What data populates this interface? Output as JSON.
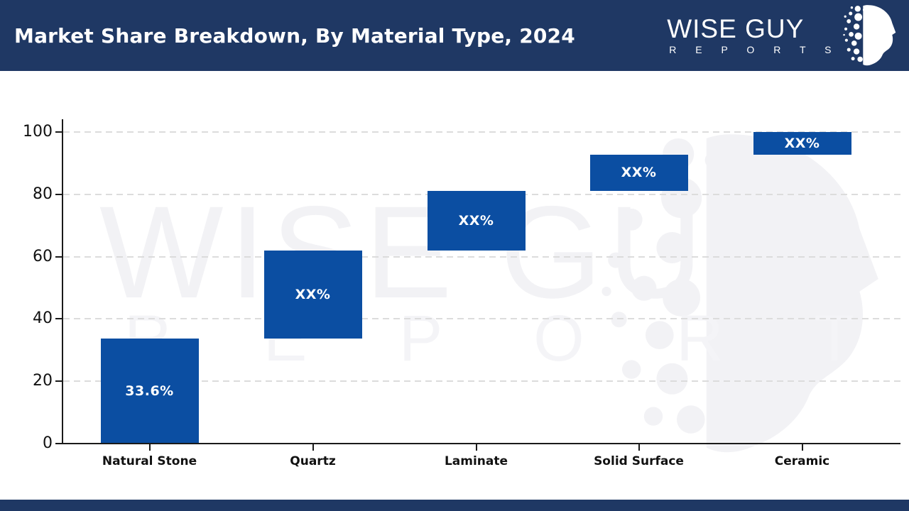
{
  "header": {
    "title": "Market Share Breakdown, By Material Type, 2024",
    "background_color": "#1F3864",
    "brand": {
      "line1": "WISE GUY",
      "line2": "R E P O R T S"
    }
  },
  "watermark": {
    "line1": "WISE GUY",
    "line2": "R E P O R T S"
  },
  "chart_data": {
    "type": "bar",
    "subtype": "waterfall",
    "title": "Market Share Breakdown, By Material Type, 2024",
    "xlabel": "",
    "ylabel": "",
    "categories": [
      "Natural Stone",
      "Quartz",
      "Laminate",
      "Solid Surface",
      "Ceramic"
    ],
    "segments": [
      {
        "category": "Natural Stone",
        "start": 0,
        "end": 33.6,
        "label": "33.6%"
      },
      {
        "category": "Quartz",
        "start": 33.6,
        "end": 62,
        "label": "XX%"
      },
      {
        "category": "Laminate",
        "start": 62,
        "end": 81,
        "label": "XX%"
      },
      {
        "category": "Solid Surface",
        "start": 81,
        "end": 92.8,
        "label": "XX%"
      },
      {
        "category": "Ceramic",
        "start": 92.8,
        "end": 100,
        "label": "XX%"
      }
    ],
    "y_ticks": [
      0,
      20,
      40,
      60,
      80,
      100
    ],
    "ylim": [
      0,
      104
    ],
    "bar_color": "#0B4EA2",
    "grid": "horizontal dashed",
    "gridline_color": "#dcdcdc",
    "legend_position": "none"
  }
}
